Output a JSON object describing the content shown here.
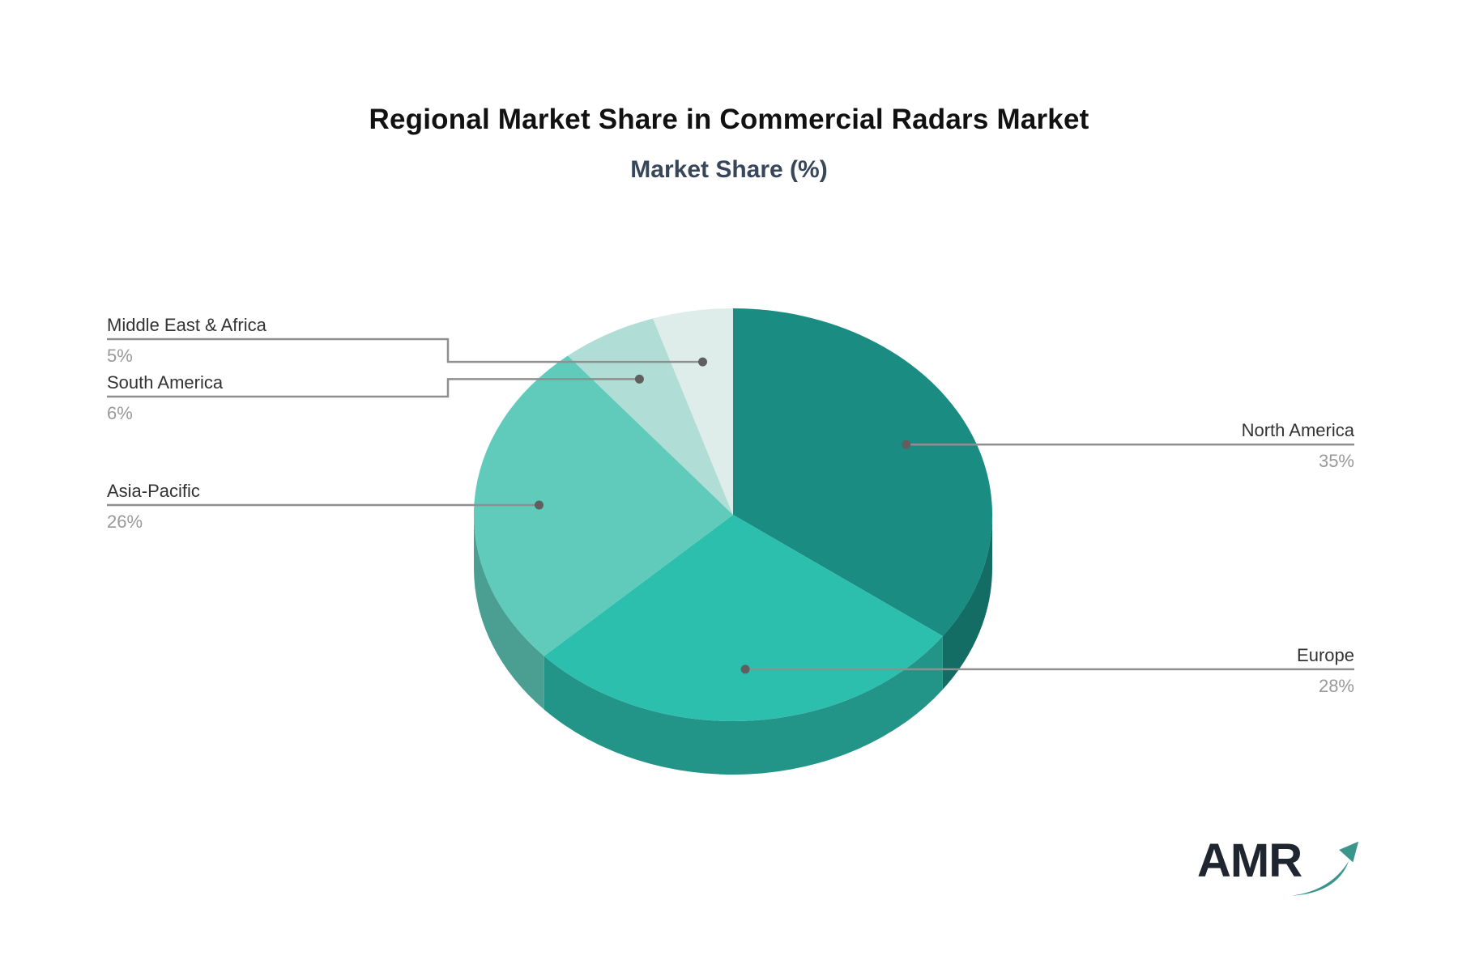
{
  "title": "Regional Market Share in Commercial Radars Market",
  "subtitle": "Market Share (%)",
  "logo": {
    "text": "AMR"
  },
  "chart_data": {
    "type": "pie",
    "style": "3d",
    "title": "Regional Market Share in Commercial Radars Market",
    "subtitle": "Market Share (%)",
    "unit": "%",
    "start_angle_deg": 0,
    "direction": "clockwise",
    "legend_position": "callout-labels",
    "slices": [
      {
        "label": "North America",
        "value": 35,
        "display": "35%",
        "color": "#1a8c82"
      },
      {
        "label": "Europe",
        "value": 28,
        "display": "28%",
        "color": "#2dbfae"
      },
      {
        "label": "Asia-Pacific",
        "value": 26,
        "display": "26%",
        "color": "#60cbbb"
      },
      {
        "label": "South America",
        "value": 6,
        "display": "6%",
        "color": "#b0ddd5"
      },
      {
        "label": "Middle East & Africa",
        "value": 5,
        "display": "5%",
        "color": "#dfedea"
      }
    ],
    "leader_line_color": "#8f8f8f",
    "leader_dot_color": "#5f5f5f",
    "label_color": "#333333",
    "value_color": "#999999",
    "logo_arrow_color": "#3a968c"
  }
}
